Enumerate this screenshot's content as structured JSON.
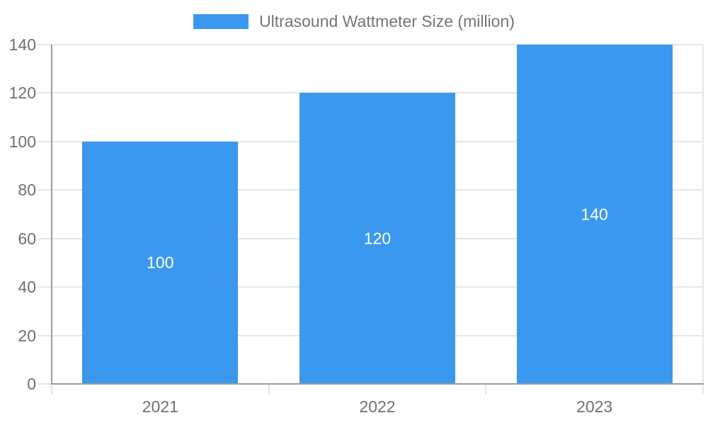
{
  "legend": {
    "label": "Ultrasound Wattmeter Size (million)"
  },
  "chart_data": {
    "type": "bar",
    "title": "Ultrasound Wattmeter Size (million)",
    "categories": [
      "2021",
      "2022",
      "2023"
    ],
    "series": [
      {
        "name": "Ultrasound Wattmeter Size (million)",
        "values": [
          100,
          120,
          140
        ]
      }
    ],
    "xlabel": "",
    "ylabel": "",
    "ylim": [
      0,
      140
    ],
    "y_ticks": [
      0,
      20,
      40,
      60,
      80,
      100,
      120,
      140
    ],
    "grid": true,
    "legend_position": "top",
    "data_labels_inside_bars": true,
    "colors": {
      "bar": "#3A99EE",
      "grid": "#E6E6E6",
      "axis": "#9C9C9C",
      "tick_label": "#707070",
      "legend_text": "#757575",
      "data_label": "#FFFFFF",
      "background": "#FFFFFF"
    }
  }
}
